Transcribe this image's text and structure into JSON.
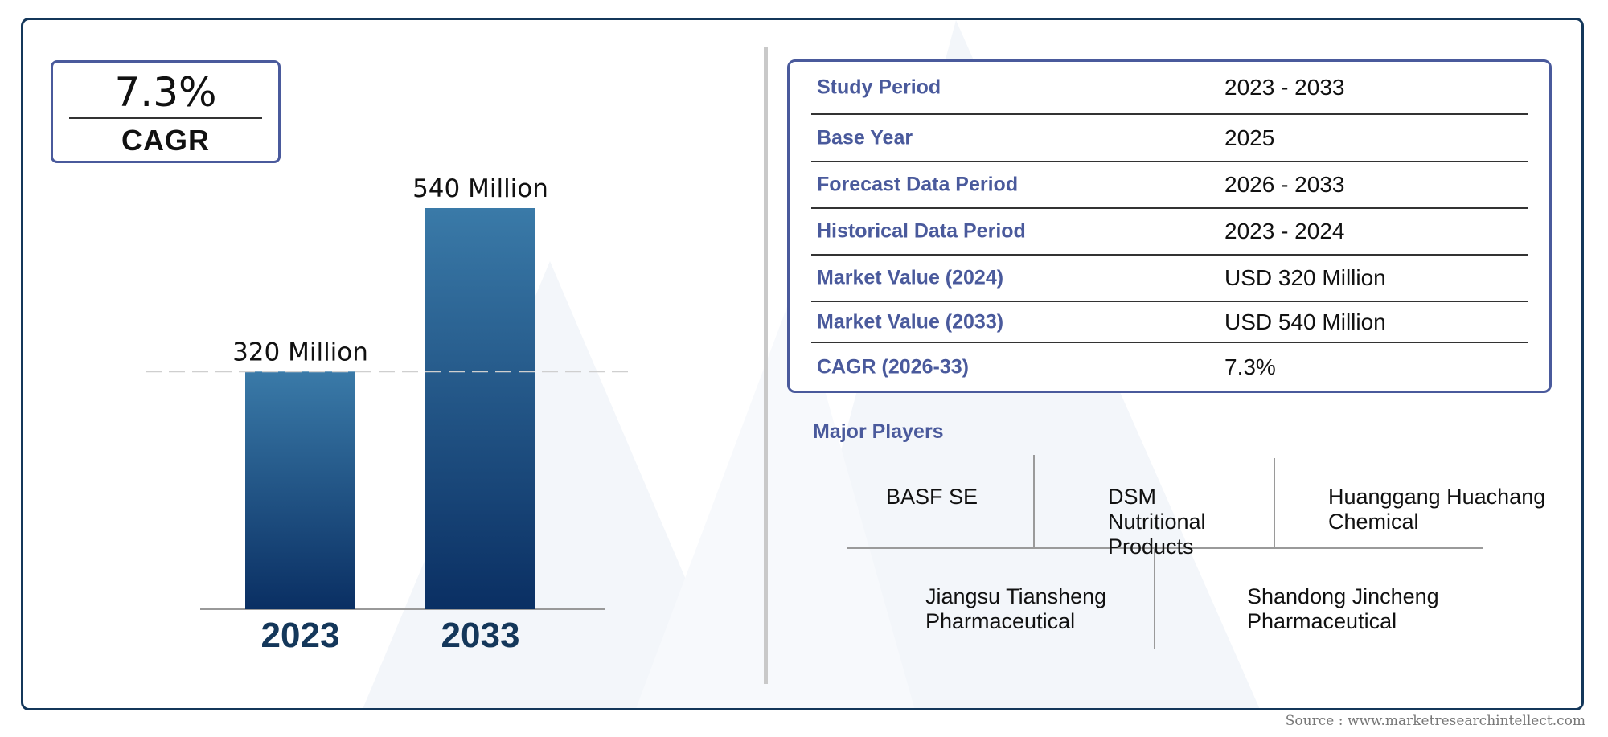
{
  "cagr_box": {
    "value": "7.3%",
    "label": "CAGR"
  },
  "chart_data": {
    "type": "bar",
    "categories": [
      "2023",
      "2033"
    ],
    "values": [
      320,
      540
    ],
    "data_labels": [
      "320 Million",
      "540 Million"
    ],
    "title": "",
    "xlabel": "",
    "ylabel": "",
    "colors": {
      "bar_top": "#3a7aa8",
      "bar_bottom": "#0a2f63",
      "category_text": "#14375a"
    }
  },
  "table": {
    "rows": [
      {
        "label": "Study Period",
        "value": "2023 - 2033"
      },
      {
        "label": "Base Year",
        "value": "2025"
      },
      {
        "label": "Forecast Data Period",
        "value": "2026 - 2033"
      },
      {
        "label": "Historical Data Period",
        "value": "2023 - 2024"
      },
      {
        "label": "Market Value (2024)",
        "value": "USD 320 Million"
      },
      {
        "label": "Market Value (2033)",
        "value": "USD 540 Million"
      },
      {
        "label": "CAGR (2026-33)",
        "value": "7.3%"
      }
    ]
  },
  "players": {
    "title": "Major Players",
    "items": [
      "BASF SE",
      "DSM Nutritional Products",
      "Huanggang Huachang Chemical",
      "Jiangsu Tiansheng Pharmaceutical",
      "Shandong Jincheng Pharmaceutical"
    ]
  },
  "source": "Source : www.marketresearchintellect.com",
  "colors": {
    "frame": "#14375a",
    "accent": "#4a5a9c"
  }
}
